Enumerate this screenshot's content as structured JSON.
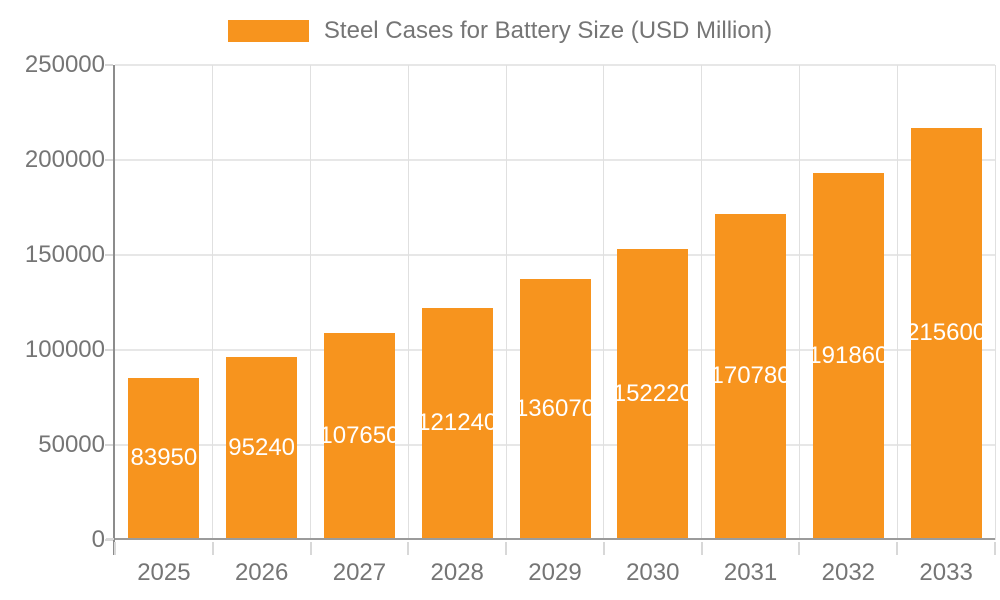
{
  "chart_data": {
    "type": "bar",
    "title": "Steel Cases for Battery Size (USD Million)",
    "legend": {
      "position": "top",
      "label": "Steel Cases for Battery Size (USD Million)"
    },
    "categories": [
      "2025",
      "2026",
      "2027",
      "2028",
      "2029",
      "2030",
      "2031",
      "2032",
      "2033"
    ],
    "series": [
      {
        "name": "Steel Cases for Battery Size (USD Million)",
        "values": [
          83950,
          95240,
          107650,
          121240,
          136070,
          152220,
          170780,
          191860,
          215600
        ]
      }
    ],
    "bar_value_labels": [
      "83950",
      "95240",
      "107650",
      "121240",
      "136070",
      "152220",
      "170780",
      "191860",
      "215600"
    ],
    "xlabel": "",
    "ylabel": "",
    "ylim": [
      0,
      250000
    ],
    "yticks": [
      0,
      50000,
      100000,
      150000,
      200000,
      250000
    ],
    "ytick_labels": [
      "0",
      "50000",
      "100000",
      "150000",
      "200000",
      "250000"
    ],
    "grid": true,
    "value_label_position": "inside-center",
    "colors": {
      "bar": "#F7941E",
      "bar_label_text": "#FFFFFF",
      "axis_text": "#757575",
      "legend_text": "#757575",
      "grid_horizontal": "#E7E7E7",
      "grid_vertical": "#E0E0E0",
      "y_axis_line": "#8C8C8C",
      "x_axis_line": "#9B9B9B",
      "tick": "#D8D8D8",
      "background": "#FFFFFF"
    }
  }
}
